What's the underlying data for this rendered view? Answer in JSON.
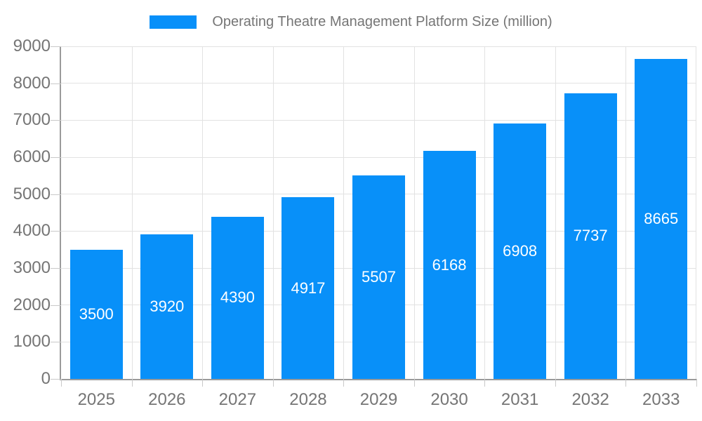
{
  "legend": {
    "label": "Operating Theatre Management Platform Size (million)"
  },
  "chart_data": {
    "type": "bar",
    "title": "Operating Theatre Management Platform Size (million)",
    "categories": [
      "2025",
      "2026",
      "2027",
      "2028",
      "2029",
      "2030",
      "2031",
      "2032",
      "2033"
    ],
    "values": [
      3500,
      3920,
      4390,
      4917,
      5507,
      6168,
      6908,
      7737,
      8665
    ],
    "series": [
      {
        "name": "Operating Theatre Management Platform Size (million)",
        "values": [
          3500,
          3920,
          4390,
          4917,
          5507,
          6168,
          6908,
          7737,
          8665
        ]
      }
    ],
    "xlabel": "",
    "ylabel": "",
    "ylim": [
      0,
      9000
    ],
    "yticks": [
      0,
      1000,
      2000,
      3000,
      4000,
      5000,
      6000,
      7000,
      8000,
      9000
    ],
    "grid": true,
    "legend_position": "top",
    "value_labels": "inside-center",
    "colors": {
      "bar": "#0890f9",
      "bar_label": "#ffffff",
      "axis_text": "#757575",
      "title_text": "#757575",
      "grid_line": "#e2e2e2",
      "tick_line": "#c9c9c9",
      "axis_line": "#9a9a9a",
      "background": "#ffffff"
    }
  }
}
